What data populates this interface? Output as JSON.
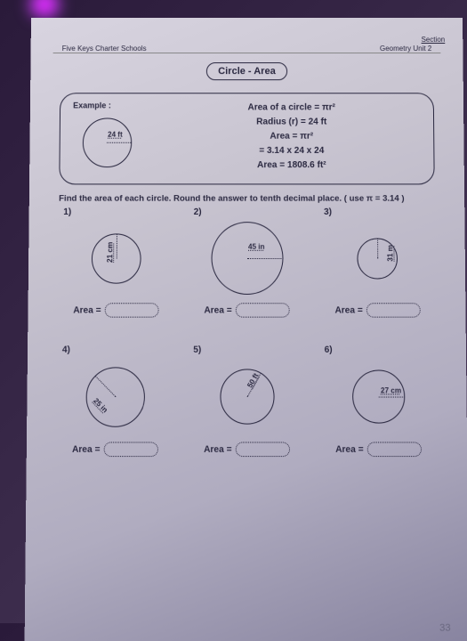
{
  "header": {
    "school": "Five Keys Charter Schools",
    "unit": "Geometry Unit 2",
    "section": "Section"
  },
  "title": "Circle - Area",
  "example": {
    "label": "Example :",
    "radius_label": "24 ft",
    "lines": [
      "Area of a circle = πr²",
      "Radius (r) = 24 ft",
      "Area = πr²",
      "= 3.14 x 24 x 24",
      "Area = 1808.6 ft²"
    ]
  },
  "instruction": "Find the area of each circle. Round the answer to tenth decimal place. ( use π = 3.14 )",
  "problems": [
    {
      "num": "1)",
      "size": 55,
      "r_label": "21 cm",
      "r_angle": -90,
      "r_len": 27,
      "lbl_top": "30%",
      "lbl_left": "15%",
      "lbl_rot": -90
    },
    {
      "num": "2)",
      "size": 80,
      "r_label": "45 in",
      "r_angle": 0,
      "r_len": 40,
      "lbl_top": "28%",
      "lbl_left": "52%",
      "lbl_rot": 0
    },
    {
      "num": "3)",
      "size": 45,
      "r_label": "31 m",
      "r_angle": -90,
      "r_len": 22,
      "lbl_top": "26%",
      "lbl_left": "62%",
      "lbl_rot": -90
    },
    {
      "num": "4)",
      "size": 65,
      "r_label": "25 in",
      "r_angle": 225,
      "r_len": 32,
      "lbl_top": "58%",
      "lbl_left": "10%",
      "lbl_rot": 45
    },
    {
      "num": "5)",
      "size": 60,
      "r_label": "50 ft",
      "r_angle": -60,
      "r_len": 30,
      "lbl_top": "12%",
      "lbl_left": "48%",
      "lbl_rot": -60
    },
    {
      "num": "6)",
      "size": 58,
      "r_label": "27 cm",
      "r_angle": 0,
      "r_len": 29,
      "lbl_top": "30%",
      "lbl_left": "55%",
      "lbl_rot": 0
    }
  ],
  "area_label": "Area =",
  "page_number": "33",
  "colors": {
    "ink": "#2a2840",
    "paper_light": "#d8d4e0",
    "paper_dark": "#8884a0"
  }
}
